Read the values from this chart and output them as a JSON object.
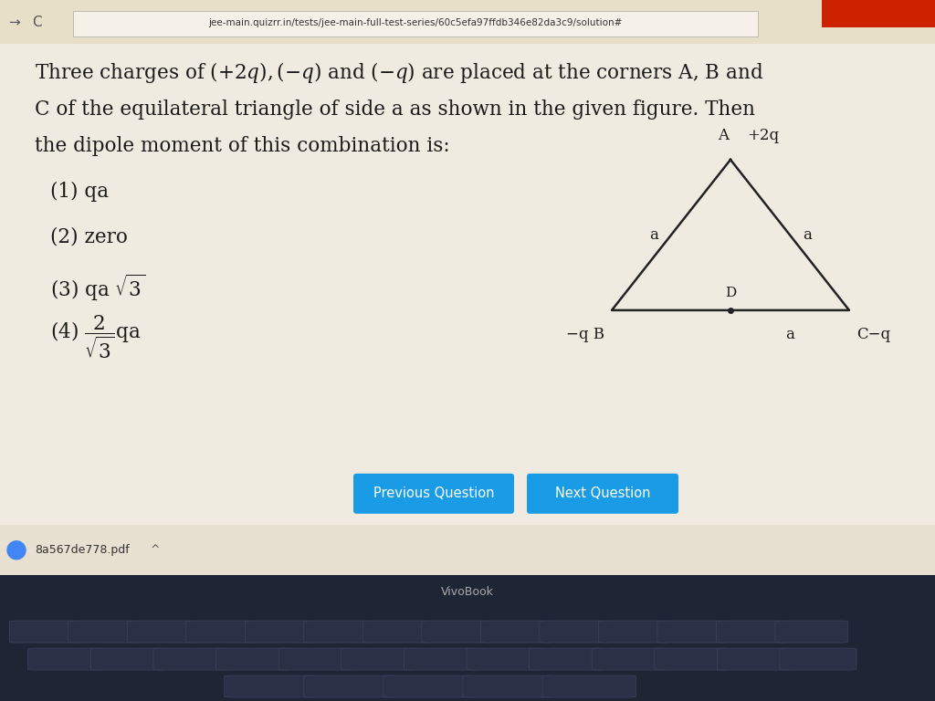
{
  "content_bg": "#f0ebe0",
  "outer_bg": "#c8c0b0",
  "text_color": "#1a1a1a",
  "title_lines": [
    "Three charges of $(+2q),(-q)$ and $(-q)$ are placed at the corners A, B and",
    "C of the equilateral triangle of side a as shown in the given figure. Then",
    "the dipole moment of this combination is:"
  ],
  "options": [
    "(1) qa",
    "(2) zero",
    "(3) qa $\\sqrt{3}$",
    "(4) $\\dfrac{2}{\\sqrt{3}}$qa"
  ],
  "browser_bg": "#d4c8a8",
  "browser_bar_bg": "#e8dfc8",
  "url_text": "jee-main.quizrr.in/tests/jee-main-full-test-series/60c5efa97ffdb346e82da3c9/solution#",
  "red_tab_color": "#cc2200",
  "button1_text": "Previous Question",
  "button2_text": "Next Question",
  "button_color": "#1a9be6",
  "button_text_color": "#ffffff",
  "footer_bar_color": "#1a1f2e",
  "vivobook_text": "VivoBook",
  "footer_text": "8a567de778.pdf",
  "keyboard_color": "#1e2535",
  "screen_bg": "#e8e0d0"
}
